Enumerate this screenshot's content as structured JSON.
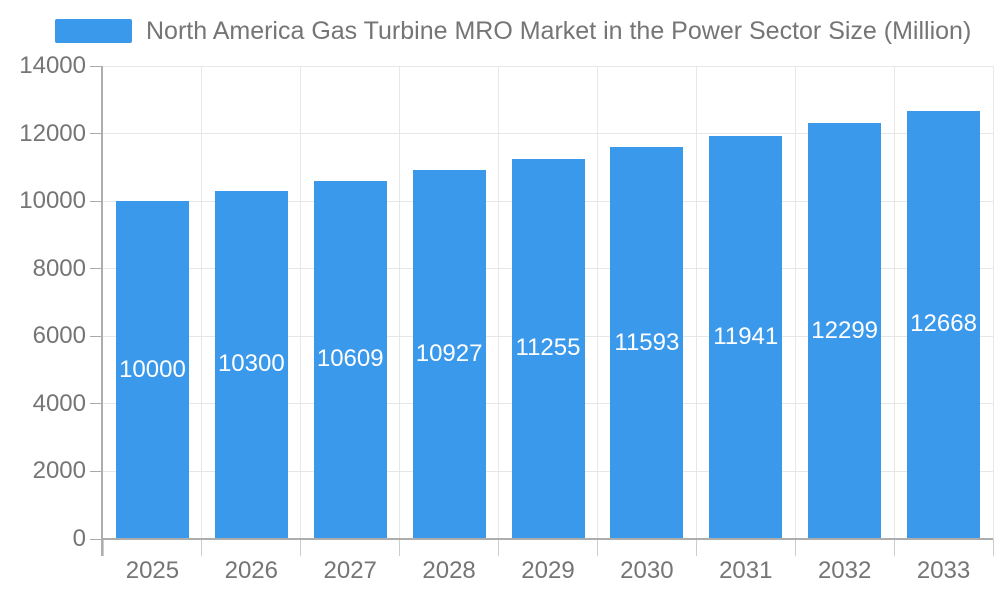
{
  "chart_data": {
    "type": "bar",
    "title": "North America Gas Turbine MRO Market in the Power Sector Size (Million)",
    "categories": [
      "2025",
      "2026",
      "2027",
      "2028",
      "2029",
      "2030",
      "2031",
      "2032",
      "2033"
    ],
    "values": [
      10000,
      10300,
      10609,
      10927,
      11255,
      11593,
      11941,
      12299,
      12668
    ],
    "series": [
      {
        "name": "North America Gas Turbine MRO Market in the Power Sector Size (Million)",
        "values": [
          10000,
          10300,
          10609,
          10927,
          11255,
          11593,
          11941,
          12299,
          12668
        ]
      }
    ],
    "xlabel": "",
    "ylabel": "",
    "ylim": [
      0,
      14000
    ],
    "yticks": [
      0,
      2000,
      4000,
      6000,
      8000,
      10000,
      12000,
      14000
    ],
    "grid": true,
    "legend_position": "top",
    "bar_color": "#3b99ec",
    "bar_label_color": "#ffffff",
    "axis_text_color": "#757575",
    "grid_color": "#e7e7e7",
    "axis_line_color": "#adadad",
    "background_color": "#ffffff"
  }
}
